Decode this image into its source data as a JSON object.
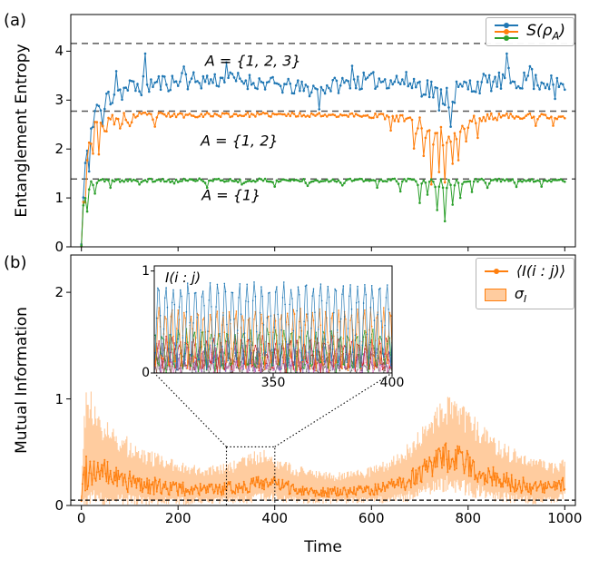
{
  "figure": {
    "panel_a_label": "(a)",
    "panel_b_label": "(b)",
    "background": "#ffffff"
  },
  "chart_data": [
    {
      "id": "entanglement-entropy",
      "type": "line",
      "ylabel": "Entanglement Entropy",
      "xlim": [
        -22,
        1022
      ],
      "ylim": [
        0,
        4.75
      ],
      "yticks": [
        0,
        1,
        2,
        3,
        4
      ],
      "xticks": [
        0,
        200,
        400,
        600,
        800,
        1000
      ],
      "dashed_lines": [
        1.386,
        2.773,
        4.159
      ],
      "dashed_color": "#595959",
      "legend": {
        "prefix": "S(ρ",
        "sub": "A",
        "suffix": ")"
      },
      "annotations": [
        {
          "text": "A = {1, 2, 3}",
          "x": 355,
          "y": 3.8
        },
        {
          "text": "A = {1, 2}",
          "x": 327,
          "y": 2.17
        },
        {
          "text": "A = {1}",
          "x": 310,
          "y": 1.06
        }
      ],
      "series": [
        {
          "name": "A={1,2,3}",
          "color": "#1f77b4",
          "seed": 11,
          "base": [
            [
              0,
              0.05
            ],
            [
              4,
              1.0
            ],
            [
              10,
              2.0
            ],
            [
              20,
              2.6
            ],
            [
              35,
              2.9
            ],
            [
              60,
              3.1
            ],
            [
              100,
              3.25
            ],
            [
              160,
              3.35
            ],
            [
              240,
              3.4
            ],
            [
              320,
              3.42
            ],
            [
              380,
              3.35
            ],
            [
              420,
              3.28
            ],
            [
              470,
              3.22
            ],
            [
              520,
              3.3
            ],
            [
              580,
              3.38
            ],
            [
              640,
              3.42
            ],
            [
              690,
              3.35
            ],
            [
              730,
              3.2
            ],
            [
              760,
              3.1
            ],
            [
              790,
              3.25
            ],
            [
              830,
              3.35
            ],
            [
              900,
              3.4
            ],
            [
              960,
              3.38
            ],
            [
              1000,
              3.3
            ]
          ],
          "noise": [
            [
              0,
              0.1
            ],
            [
              10,
              0.25
            ],
            [
              40,
              0.3
            ],
            [
              100,
              0.22
            ],
            [
              200,
              0.18
            ],
            [
              400,
              0.16
            ],
            [
              600,
              0.18
            ],
            [
              700,
              0.22
            ],
            [
              760,
              0.28
            ],
            [
              820,
              0.2
            ],
            [
              1000,
              0.18
            ]
          ],
          "spikes": [
            [
              16,
              -1.0
            ],
            [
              44,
              -0.7
            ],
            [
              72,
              0.5
            ],
            [
              132,
              0.45
            ],
            [
              212,
              0.45
            ],
            [
              300,
              0.4
            ],
            [
              492,
              -0.35
            ],
            [
              560,
              0.35
            ],
            [
              740,
              -0.5
            ],
            [
              764,
              -0.45
            ],
            [
              880,
              0.4
            ],
            [
              928,
              0.4
            ],
            [
              980,
              -0.3
            ]
          ]
        },
        {
          "name": "A={1,2}",
          "color": "#ff7f0e",
          "seed": 23,
          "base": [
            [
              0,
              0.03
            ],
            [
              4,
              1.2
            ],
            [
              10,
              1.9
            ],
            [
              18,
              2.3
            ],
            [
              30,
              2.5
            ],
            [
              50,
              2.6
            ],
            [
              80,
              2.65
            ],
            [
              130,
              2.68
            ],
            [
              250,
              2.7
            ],
            [
              500,
              2.7
            ],
            [
              620,
              2.68
            ],
            [
              680,
              2.6
            ],
            [
              710,
              2.5
            ],
            [
              740,
              2.42
            ],
            [
              770,
              2.45
            ],
            [
              800,
              2.58
            ],
            [
              840,
              2.65
            ],
            [
              900,
              2.68
            ],
            [
              1000,
              2.66
            ]
          ],
          "noise": [
            [
              0,
              0.12
            ],
            [
              20,
              0.22
            ],
            [
              60,
              0.15
            ],
            [
              120,
              0.08
            ],
            [
              200,
              0.05
            ],
            [
              550,
              0.04
            ],
            [
              640,
              0.08
            ],
            [
              700,
              0.16
            ],
            [
              760,
              0.22
            ],
            [
              810,
              0.12
            ],
            [
              870,
              0.06
            ],
            [
              1000,
              0.06
            ]
          ],
          "spikes": [
            [
              8,
              -0.8
            ],
            [
              24,
              -0.5
            ],
            [
              36,
              -0.45
            ],
            [
              52,
              -0.4
            ],
            [
              80,
              -0.35
            ],
            [
              100,
              -0.25
            ],
            [
              152,
              -0.2
            ],
            [
              640,
              -0.3
            ],
            [
              688,
              -0.5
            ],
            [
              708,
              -0.8
            ],
            [
              724,
              -1.1
            ],
            [
              740,
              -0.7
            ],
            [
              752,
              -1.3
            ],
            [
              768,
              -0.9
            ],
            [
              780,
              -0.7
            ],
            [
              796,
              -0.5
            ],
            [
              820,
              -0.35
            ],
            [
              940,
              -0.25
            ],
            [
              976,
              -0.2
            ]
          ]
        },
        {
          "name": "A={1}",
          "color": "#2ca02c",
          "seed": 37,
          "base": [
            [
              0,
              0.02
            ],
            [
              4,
              0.8
            ],
            [
              8,
              1.15
            ],
            [
              14,
              1.3
            ],
            [
              24,
              1.35
            ],
            [
              40,
              1.36
            ],
            [
              1000,
              1.36
            ]
          ],
          "noise": [
            [
              0,
              0.05
            ],
            [
              20,
              0.04
            ],
            [
              1000,
              0.03
            ]
          ],
          "spikes": [
            [
              12,
              -0.55
            ],
            [
              28,
              -0.3
            ],
            [
              60,
              -0.18
            ],
            [
              120,
              -0.12
            ],
            [
              192,
              -0.1
            ],
            [
              260,
              -0.12
            ],
            [
              332,
              -0.1
            ],
            [
              400,
              -0.13
            ],
            [
              468,
              -0.1
            ],
            [
              540,
              -0.12
            ],
            [
              612,
              -0.14
            ],
            [
              660,
              -0.2
            ],
            [
              700,
              -0.45
            ],
            [
              716,
              -0.3
            ],
            [
              736,
              -0.6
            ],
            [
              752,
              -0.85
            ],
            [
              768,
              -0.5
            ],
            [
              784,
              -0.35
            ],
            [
              808,
              -0.25
            ],
            [
              840,
              -0.18
            ],
            [
              900,
              -0.12
            ],
            [
              952,
              -0.1
            ]
          ]
        }
      ]
    },
    {
      "id": "mutual-information",
      "type": "line",
      "ylabel": "Mutual Information",
      "xlabel": "Time",
      "xlim": [
        -22,
        1022
      ],
      "ylim": [
        0,
        2.35
      ],
      "yticks": [
        0,
        1,
        2
      ],
      "xticks": [
        0,
        200,
        400,
        600,
        800,
        1000
      ],
      "dashed_line": 0.05,
      "series_color": "#ff7f0e",
      "band_color": "rgba(255,127,14,0.4)",
      "legend": {
        "line_label": "⟨I(i : j)⟩",
        "patch_label": "σ",
        "patch_sub": "I"
      },
      "mean": [
        [
          0,
          0.05
        ],
        [
          4,
          0.28
        ],
        [
          10,
          0.34
        ],
        [
          20,
          0.35
        ],
        [
          40,
          0.31
        ],
        [
          70,
          0.26
        ],
        [
          100,
          0.22
        ],
        [
          140,
          0.19
        ],
        [
          180,
          0.165
        ],
        [
          220,
          0.15
        ],
        [
          260,
          0.145
        ],
        [
          300,
          0.155
        ],
        [
          330,
          0.175
        ],
        [
          355,
          0.2
        ],
        [
          375,
          0.22
        ],
        [
          395,
          0.21
        ],
        [
          415,
          0.18
        ],
        [
          440,
          0.155
        ],
        [
          480,
          0.135
        ],
        [
          520,
          0.125
        ],
        [
          560,
          0.13
        ],
        [
          600,
          0.145
        ],
        [
          640,
          0.175
        ],
        [
          670,
          0.22
        ],
        [
          700,
          0.3
        ],
        [
          725,
          0.38
        ],
        [
          745,
          0.44
        ],
        [
          765,
          0.46
        ],
        [
          785,
          0.42
        ],
        [
          810,
          0.36
        ],
        [
          840,
          0.29
        ],
        [
          870,
          0.24
        ],
        [
          900,
          0.2
        ],
        [
          930,
          0.175
        ],
        [
          960,
          0.16
        ],
        [
          985,
          0.17
        ],
        [
          1000,
          0.21
        ]
      ],
      "sigma": [
        [
          0,
          0.05
        ],
        [
          4,
          0.35
        ],
        [
          8,
          0.6
        ],
        [
          14,
          0.68
        ],
        [
          22,
          0.58
        ],
        [
          35,
          0.5
        ],
        [
          55,
          0.44
        ],
        [
          80,
          0.38
        ],
        [
          110,
          0.32
        ],
        [
          150,
          0.27
        ],
        [
          190,
          0.23
        ],
        [
          230,
          0.2
        ],
        [
          270,
          0.19
        ],
        [
          310,
          0.21
        ],
        [
          340,
          0.24
        ],
        [
          365,
          0.26
        ],
        [
          390,
          0.25
        ],
        [
          420,
          0.21
        ],
        [
          460,
          0.18
        ],
        [
          510,
          0.16
        ],
        [
          560,
          0.16
        ],
        [
          610,
          0.19
        ],
        [
          650,
          0.24
        ],
        [
          680,
          0.3
        ],
        [
          710,
          0.38
        ],
        [
          735,
          0.44
        ],
        [
          760,
          0.48
        ],
        [
          785,
          0.45
        ],
        [
          815,
          0.4
        ],
        [
          850,
          0.34
        ],
        [
          890,
          0.28
        ],
        [
          930,
          0.24
        ],
        [
          965,
          0.21
        ],
        [
          1000,
          0.2
        ]
      ],
      "zoom_rect": {
        "x0": 300,
        "x1": 400,
        "y0": 0,
        "y1": 0.55
      },
      "inset": {
        "label": "I(i : j)",
        "xlim": [
          300,
          400
        ],
        "ylim": [
          0,
          1.05
        ],
        "xticks": [
          350,
          400
        ],
        "yticks": [
          0,
          1
        ],
        "series": [
          {
            "color": "#1f77b4",
            "base": 0.06,
            "amp": 0.8,
            "period": 3.1,
            "phase": 0.5,
            "seed": 101
          },
          {
            "color": "#ff7f0e",
            "base": 0.05,
            "amp": 0.55,
            "period": 2.7,
            "phase": 2.1,
            "seed": 102
          },
          {
            "color": "#2ca02c",
            "base": 0.04,
            "amp": 0.35,
            "period": 3.4,
            "phase": 4.0,
            "seed": 103
          },
          {
            "color": "#d62728",
            "base": 0.04,
            "amp": 0.28,
            "period": 2.9,
            "phase": 1.2,
            "seed": 104
          },
          {
            "color": "#9467bd",
            "base": 0.03,
            "amp": 0.22,
            "period": 2.5,
            "phase": 3.3,
            "seed": 105
          },
          {
            "color": "#8c564b",
            "base": 0.03,
            "amp": 0.17,
            "period": 3.2,
            "phase": 0.0,
            "seed": 106
          },
          {
            "color": "#e377c2",
            "base": 0.02,
            "amp": 0.13,
            "period": 2.8,
            "phase": 2.7,
            "seed": 107
          },
          {
            "color": "#7f7f7f",
            "base": 0.02,
            "amp": 0.09,
            "period": 2.3,
            "phase": 1.8,
            "seed": 108
          }
        ]
      }
    }
  ]
}
